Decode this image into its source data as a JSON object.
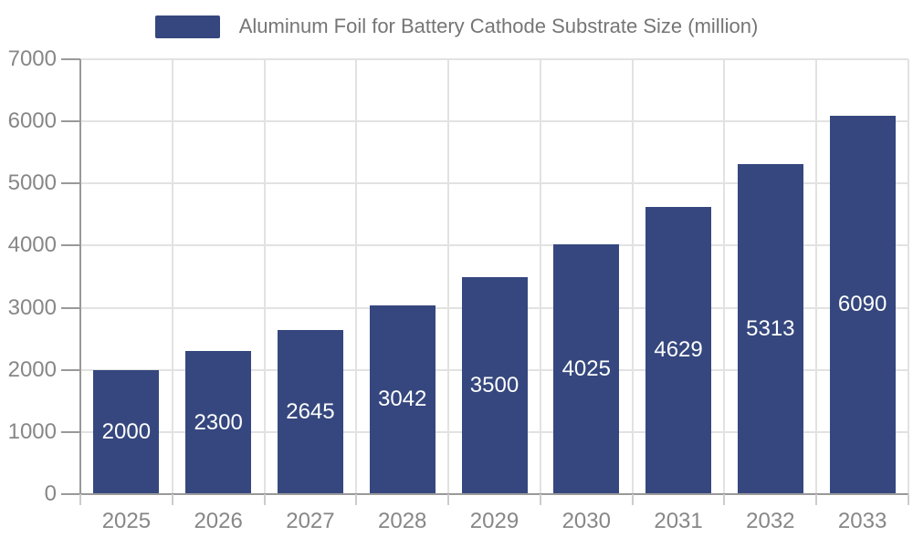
{
  "legend": {
    "label": "Aluminum Foil for Battery Cathode Substrate Size (million)",
    "swatch_color": "#35477e"
  },
  "chart_data": {
    "type": "bar",
    "title": "Aluminum Foil for Battery Cathode Substrate Size (million)",
    "categories": [
      "2025",
      "2026",
      "2027",
      "2028",
      "2029",
      "2030",
      "2031",
      "2032",
      "2033"
    ],
    "series": [
      {
        "name": "Aluminum Foil for Battery Cathode Substrate Size (million)",
        "values": [
          2000,
          2300,
          2645,
          3042,
          3500,
          4025,
          4629,
          5313,
          6090
        ]
      }
    ],
    "value_labels": [
      "2000",
      "2300",
      "2645",
      "3042",
      "3500",
      "4025",
      "4629",
      "5313",
      "6090"
    ],
    "xlabel": "",
    "ylabel": "",
    "ylim": [
      0,
      7000
    ],
    "yticks": [
      0,
      1000,
      2000,
      3000,
      4000,
      5000,
      6000,
      7000
    ],
    "ytick_labels": [
      "0",
      "1000",
      "2000",
      "3000",
      "4000",
      "5000",
      "6000",
      "7000"
    ],
    "grid": true,
    "legend_position": "top-center",
    "colors": {
      "bar": "#35477e",
      "bar_value_label": "#ffffff",
      "grid_line": "#e2e2e2",
      "axis_line": "#999999",
      "y_tick": "#999999",
      "x_tick": "#cccccc",
      "axis_label": "#878787"
    }
  }
}
